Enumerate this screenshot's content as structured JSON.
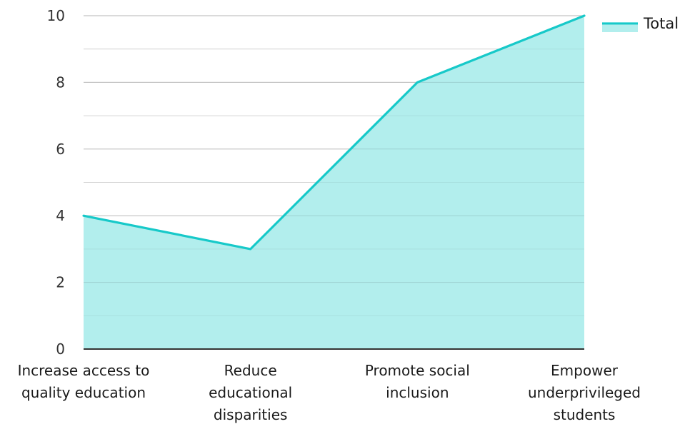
{
  "chart_data": {
    "type": "area",
    "categories": [
      [
        "Increase access to",
        "quality education"
      ],
      [
        "Reduce",
        "educational",
        "disparities"
      ],
      [
        "Promote social",
        "inclusion"
      ],
      [
        "Empower",
        "underprivileged",
        "students"
      ]
    ],
    "series": [
      {
        "name": "Total",
        "values": [
          4,
          3,
          8,
          10
        ]
      }
    ],
    "ylim": [
      0,
      10
    ],
    "yticks": [
      0,
      2,
      4,
      6,
      8,
      10
    ],
    "grid": true,
    "legend": "top-right",
    "colors": {
      "line": "#17c9c9",
      "fill": "#b2eeed",
      "grid": "#d9d9d9",
      "axis": "#333333"
    }
  }
}
